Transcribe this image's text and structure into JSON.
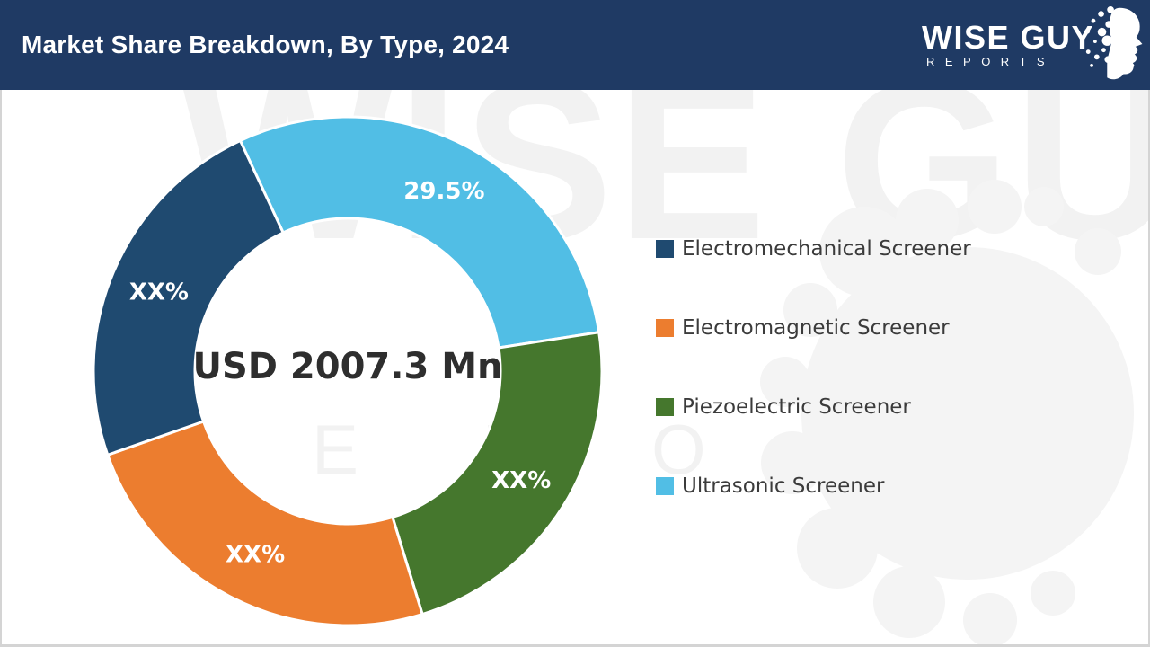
{
  "header": {
    "title": "Market Share Breakdown, By Type, 2024",
    "bg_color": "#1F3A64",
    "logo": {
      "line1": "WISE GUY",
      "line2": "REPORTS"
    }
  },
  "watermark": {
    "line1": "WISE GUY",
    "line2": "E P O R T S"
  },
  "chart_data": {
    "type": "pie",
    "subtype": "donut",
    "title": "Market Share Breakdown, By Type, 2024",
    "center_text": "USD 2007.3 Mn",
    "start_angle_deg": -25,
    "legend_position": "right",
    "segments": [
      {
        "name": "Ultrasonic Screener",
        "label": "29.5%",
        "value": 29.5,
        "color": "#51BEE5"
      },
      {
        "name": "Piezoelectric Screener",
        "label": "XX%",
        "value": 22.7,
        "color": "#45772D"
      },
      {
        "name": "Electromagnetic Screener",
        "label": "XX%",
        "value": 24.4,
        "color": "#EC7D2F"
      },
      {
        "name": "Electromechanical Screener",
        "label": "XX%",
        "value": 23.4,
        "color": "#1F4A70"
      }
    ],
    "legend": [
      {
        "label": "Electromechanical Screener",
        "color": "#1F4A70"
      },
      {
        "label": "Electromagnetic Screener",
        "color": "#EC7D2F"
      },
      {
        "label": "Piezoelectric Screener",
        "color": "#45772D"
      },
      {
        "label": "Ultrasonic Screener",
        "color": "#51BEE5"
      }
    ]
  }
}
